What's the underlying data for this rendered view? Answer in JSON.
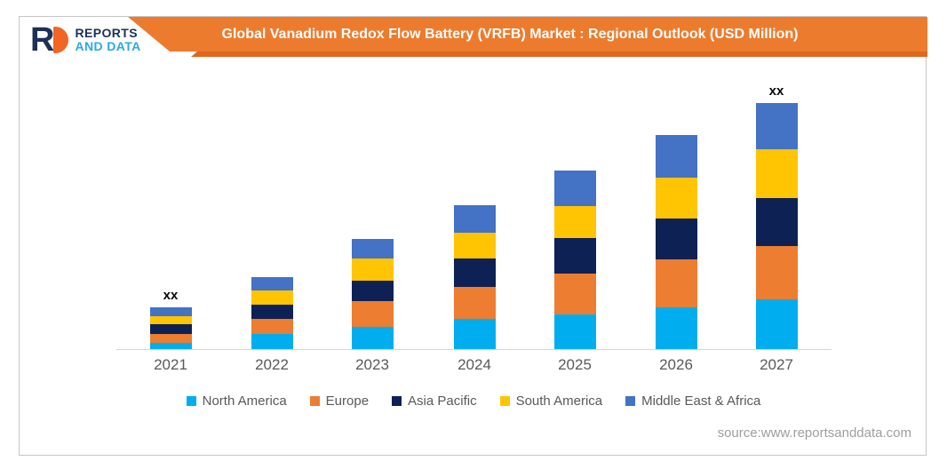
{
  "brand": {
    "logo_r": "R",
    "name_line1": "REPORTS",
    "name_line2": "AND DATA",
    "navy": "#1B3158",
    "cyan": "#29ABE2",
    "orange": "#F26522"
  },
  "banner": {
    "title": "Global Vanadium Redox Flow Battery (VRFB) Market : Regional Outlook (USD Million)",
    "color": "#ED7B2E",
    "shadow_color": "#E0661B"
  },
  "chart_data": {
    "type": "bar",
    "stacked": true,
    "title": "Global Vanadium Redox Flow Battery (VRFB) Market : Regional Outlook (USD Million)",
    "unit": "USD Million",
    "y_axis_visible": false,
    "gridlines": false,
    "legend_position": "bottom",
    "values_note": "actual values masked on chart as 'xx'; series values below are relative bar-segment heights estimated from pixels",
    "categories": [
      "2021",
      "2022",
      "2023",
      "2024",
      "2025",
      "2026",
      "2027"
    ],
    "series": [
      {
        "name": "North America",
        "color": "#00AEEF",
        "values": [
          7,
          17,
          25,
          34,
          39,
          47,
          56
        ]
      },
      {
        "name": "Europe",
        "color": "#ED7D31",
        "values": [
          10,
          17,
          29,
          36,
          46,
          54,
          60
        ]
      },
      {
        "name": "Asia Pacific",
        "color": "#0D2155",
        "values": [
          11,
          16,
          23,
          32,
          40,
          46,
          54
        ]
      },
      {
        "name": "South America",
        "color": "#FFC402",
        "values": [
          9,
          16,
          25,
          29,
          36,
          46,
          55
        ]
      },
      {
        "name": "Middle East & Africa",
        "color": "#4472C4",
        "values": [
          10,
          15,
          22,
          31,
          40,
          48,
          52
        ]
      }
    ],
    "totals_relative": [
      47,
      81,
      124,
      162,
      201,
      241,
      277
    ],
    "annotations": [
      {
        "category": "2021",
        "text": "xx"
      },
      {
        "category": "2027",
        "text": "xx"
      }
    ]
  },
  "source_note": "source:www.reportsanddata.com"
}
